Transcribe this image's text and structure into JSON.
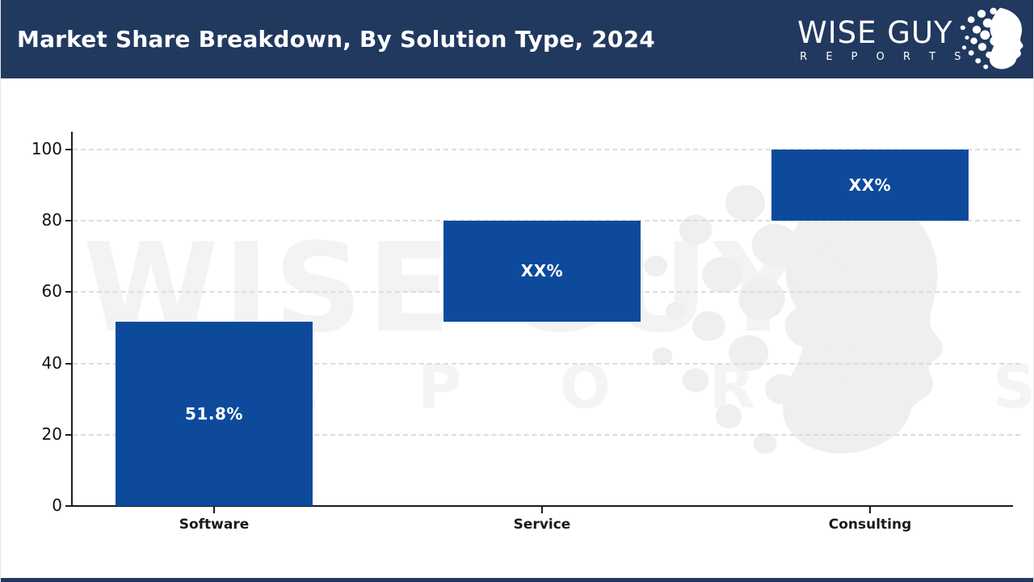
{
  "header": {
    "title": "Market Share Breakdown, By Solution Type, 2024",
    "logo": {
      "line1": "WISE GUY",
      "line2": "R E P O R T S"
    }
  },
  "watermark": {
    "line1": "WISE GUY",
    "line2": "R E P O R T S"
  },
  "chart_data": {
    "type": "bar",
    "subtype": "waterfall",
    "title": "Market Share Breakdown, By Solution Type, 2024",
    "categories": [
      "Software",
      "Service",
      "Consulting"
    ],
    "series": [
      {
        "name": "Market share (%)",
        "segments": [
          {
            "category": "Software",
            "start": 0,
            "end": 51.8,
            "label": "51.8%"
          },
          {
            "category": "Service",
            "start": 51.8,
            "end": 80,
            "label": "XX%"
          },
          {
            "category": "Consulting",
            "start": 80,
            "end": 100,
            "label": "XX%"
          }
        ]
      }
    ],
    "yticks": [
      0,
      20,
      40,
      60,
      80,
      100
    ],
    "ylim": [
      0,
      105
    ],
    "xlabel": "",
    "ylabel": "",
    "grid": "horizontal-dashed",
    "legend": "none",
    "bar_color": "#0d4a9c",
    "bar_label_color": "#ffffff"
  },
  "colors": {
    "header_bg": "#22395f",
    "footer_bg": "#22395f",
    "bar": "#0d4a9c",
    "axis": "#1c1c1c",
    "grid": "#dcdcdc",
    "watermark": "#f3f3f3"
  }
}
